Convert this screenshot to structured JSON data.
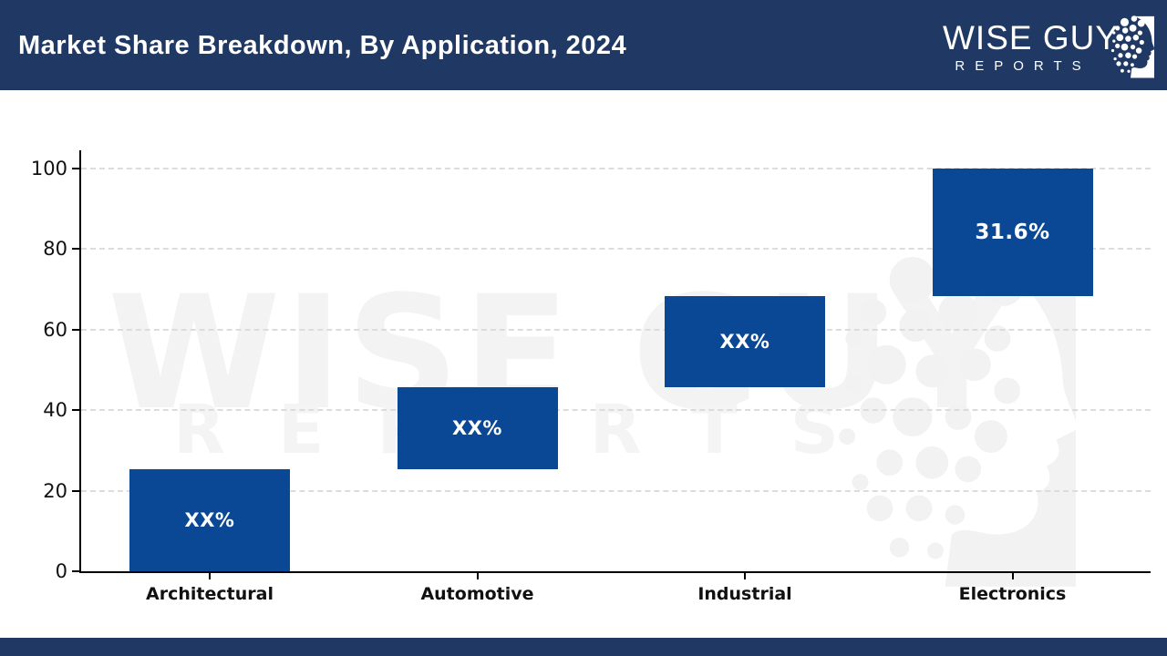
{
  "header": {
    "title": "Market Share Breakdown, By Application, 2024",
    "logo": {
      "line1": "WISE GUY",
      "line2": "REPORTS"
    }
  },
  "watermark": {
    "line1": "WISE GUY",
    "line2": "REPORTS"
  },
  "colors": {
    "header_bg": "#1f3864",
    "footer_bg": "#1f3864",
    "bar": "#0a4795",
    "grid": "#dcdcdc",
    "axis": "#000000",
    "watermark": "#f3f3f3",
    "bar_label": "#ffffff"
  },
  "chart_data": {
    "type": "bar",
    "subtype": "floating-waterfall",
    "title": "Market Share Breakdown, By Application, 2024",
    "categories": [
      "Architectural",
      "Automotive",
      "Industrial",
      "Electronics"
    ],
    "segments": [
      {
        "category": "Architectural",
        "start": 0,
        "end": 25.4,
        "value": 25.4,
        "label": "XX%"
      },
      {
        "category": "Automotive",
        "start": 25.4,
        "end": 45.6,
        "value": 20.2,
        "label": "XX%"
      },
      {
        "category": "Industrial",
        "start": 45.6,
        "end": 68.4,
        "value": 22.8,
        "label": "XX%"
      },
      {
        "category": "Electronics",
        "start": 68.4,
        "end": 100,
        "value": 31.6,
        "label": "31.6%"
      }
    ],
    "xlabel": "",
    "ylabel": "",
    "ylim": [
      0,
      100
    ],
    "yticks": [
      0,
      20,
      40,
      60,
      80,
      100
    ],
    "grid": "horizontal-dashed",
    "legend": "none"
  }
}
